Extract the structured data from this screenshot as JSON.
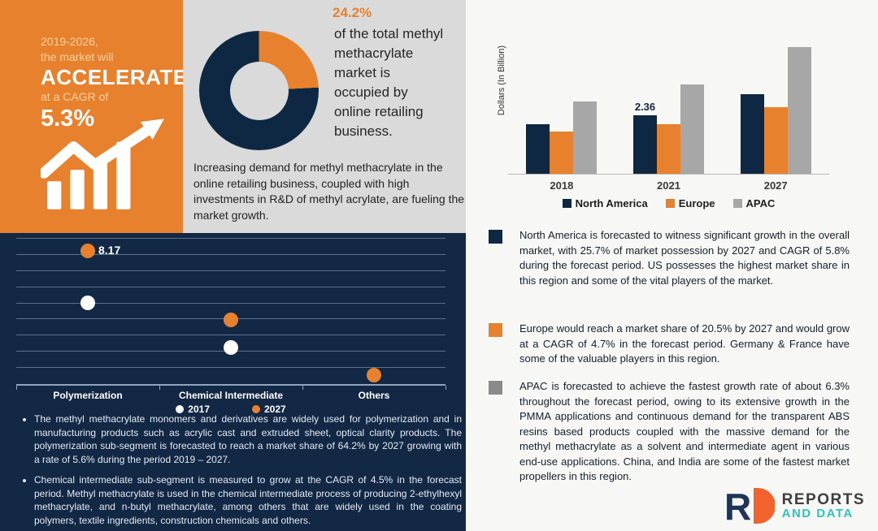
{
  "colors": {
    "orange": "#E8812D",
    "navy_panel": "#122845",
    "navy_dark": "#0E2742",
    "gray_box": "#DADADA",
    "gray_bar": "#A7A7A7",
    "teal": "#2EC4BC"
  },
  "left_panel": {
    "highlight_box": {
      "period": "2019-2026,",
      "line2": "the market will",
      "emphasis": "ACCELERATE",
      "line4": "at a CAGR of",
      "cagr": "5.3%"
    },
    "donut_stat": {
      "value": "24.2%",
      "caption": "of the total methyl methacrylate market is occupied by online retailing business."
    },
    "paragraph": "Increasing demand for methyl methacrylate in the online retailing business, coupled with high investments in R&D of methyl acrylate, are fueling the market growth.",
    "bullets": [
      "The methyl methacrylate monomers and derivatives are widely used for polymerization and in manufacturing products such as acrylic cast and extruded sheet, optical clarity products. The polymerization sub-segment is forecasted to reach a market share of 64.2% by 2027 growing with a rate of 5.6% during the period 2019 – 2027.",
      "Chemical intermediate sub-segment is measured to grow at the CAGR of 4.5% in the forecast period. Methyl methacrylate is used in the chemical intermediate process of producing 2-ethylhexyl methacrylate, and n-butyl methacrylate, among others that are widely used in the coating polymers, textile ingredients, construction chemicals and others."
    ]
  },
  "right_panel": {
    "bullets": [
      {
        "color": "#0E2742",
        "text": "North America is forecasted to witness significant growth in the overall market, with 25.7% of market possession by 2027 and CAGR of 5.8% during the forecast period. US possesses the highest market share in this region and some of the vital players of the market."
      },
      {
        "color": "#E8812D",
        "text": "Europe would reach a market share of 20.5% by 2027 and would grow at a CAGR of 4.7% in the forecast period. Germany & France have some of the valuable players in this region."
      },
      {
        "color": "#8A8A8A",
        "text": "APAC is forecasted to achieve the fastest growth rate of about 6.3% throughout the forecast period, owing to its extensive growth in the PMMA applications and continuous demand for the transparent ABS resins based products coupled with the massive demand for the methyl methacrylate as a solvent and intermediate agent in various end-use applications. China, and India are some of the fastest market propellers in this region."
      }
    ],
    "logo": {
      "mark": "RD",
      "name_top": "REPORTS",
      "name_bottom": "AND DATA"
    }
  },
  "chart_data": [
    {
      "id": "online-retail-share-donut",
      "type": "pie",
      "labels": [
        "Online retailing business",
        "Rest of market"
      ],
      "values": [
        24.2,
        75.8
      ],
      "colors": [
        "#E8812D",
        "#0E2742"
      ],
      "donut": true,
      "annotation": "24.2%"
    },
    {
      "id": "sub-segment-dot-plot",
      "type": "scatter",
      "categories": [
        "Polymerization",
        "Chemical Intermediate",
        "Others"
      ],
      "series": [
        {
          "name": "2017",
          "color": "#FFFFFF",
          "values": [
            5.0,
            2.2,
            null
          ]
        },
        {
          "name": "2027",
          "color": "#E8812D",
          "values": [
            8.17,
            3.9,
            0.5
          ]
        }
      ],
      "data_labels": [
        {
          "series": "2027",
          "category": "Polymerization",
          "text": "8.17"
        }
      ],
      "ylim": [
        0,
        9
      ],
      "gridline_step": 1,
      "grid": true,
      "legend_position": "bottom"
    },
    {
      "id": "regional-market-bars",
      "type": "bar",
      "categories": [
        "2018",
        "2021",
        "2027"
      ],
      "series": [
        {
          "name": "North America",
          "color": "#0E2742",
          "values": [
            2.0,
            2.36,
            3.2
          ]
        },
        {
          "name": "Europe",
          "color": "#E8812D",
          "values": [
            1.7,
            2.0,
            2.7
          ]
        },
        {
          "name": "APAC",
          "color": "#A7A7A7",
          "values": [
            2.9,
            3.6,
            5.1
          ]
        }
      ],
      "ylabel": "Dollars (In Billion)",
      "ylim": [
        0,
        5.5
      ],
      "data_labels": [
        {
          "series": "North America",
          "category": "2021",
          "text": "2.36"
        }
      ],
      "grid": false,
      "legend_position": "bottom"
    }
  ]
}
